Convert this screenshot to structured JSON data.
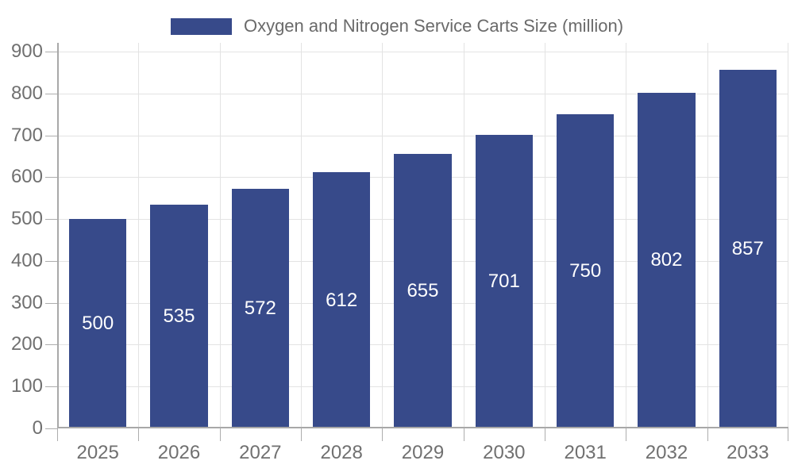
{
  "chart_data": {
    "type": "bar",
    "title": "",
    "series_name": "Oxygen and Nitrogen Service Carts Size (million)",
    "categories": [
      "2025",
      "2026",
      "2027",
      "2028",
      "2029",
      "2030",
      "2031",
      "2032",
      "2033"
    ],
    "values": [
      500,
      535,
      572,
      612,
      655,
      701,
      750,
      802,
      857
    ],
    "xlabel": "",
    "ylabel": "",
    "ylim": [
      0,
      900
    ],
    "yticks": [
      0,
      100,
      200,
      300,
      400,
      500,
      600,
      700,
      800,
      900
    ],
    "grid": true,
    "legend_position": "top",
    "value_label_position": "inside-center"
  },
  "legend": {
    "label": "Oxygen and Nitrogen Service Carts Size (million)"
  },
  "colors": {
    "bar": "#374a8a",
    "bar_label": "#ffffff",
    "axis_line": "#a8a8a8",
    "tick_mark": "#adadad",
    "grid_line": "#e3e3e3",
    "axis_text": "#707070",
    "legend_text": "#6a6a6a",
    "background": "#ffffff"
  }
}
